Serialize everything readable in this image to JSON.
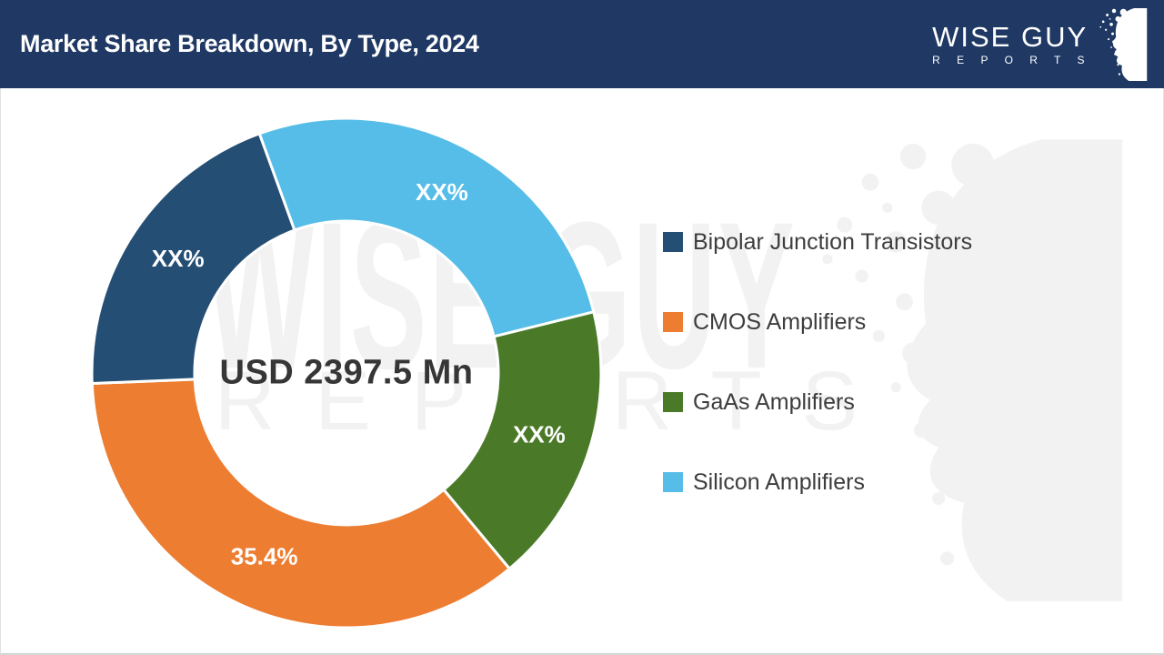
{
  "header": {
    "title": "Market Share Breakdown, By Type, 2024",
    "brand": {
      "line1": "WISE GUY",
      "line2": "R E P O R T S"
    }
  },
  "watermark": {
    "line1": "WISE GUY",
    "line2": "REPORTS"
  },
  "chart_data": {
    "type": "pie",
    "subtype": "donut",
    "title": "Market Share Breakdown, By Type, 2024",
    "center_label": "USD 2397.5 Mn",
    "start_angle_deg": 340,
    "outer_radius": 280,
    "inner_radius": 167,
    "label_radius": 223,
    "gap_stroke_color": "#ffffff",
    "segments": [
      {
        "name": "Silicon Amplifiers",
        "value_pct": 26.7,
        "label": "XX%",
        "color": "#55bde7"
      },
      {
        "name": "GaAs Amplifiers",
        "value_pct": 17.8,
        "label": "XX%",
        "color": "#4a7a28"
      },
      {
        "name": "CMOS Amplifiers",
        "value_pct": 35.4,
        "label": "35.4%",
        "color": "#ed7d31"
      },
      {
        "name": "Bipolar Junction Transistors",
        "value_pct": 20.1,
        "label": "XX%",
        "color": "#254e74"
      }
    ]
  },
  "legend": {
    "items": [
      {
        "label": "Bipolar Junction Transistors",
        "color": "#254e74"
      },
      {
        "label": "CMOS Amplifiers",
        "color": "#ed7d31"
      },
      {
        "label": "GaAs Amplifiers",
        "color": "#4a7a28"
      },
      {
        "label": "Silicon Amplifiers",
        "color": "#55bde7"
      }
    ]
  }
}
